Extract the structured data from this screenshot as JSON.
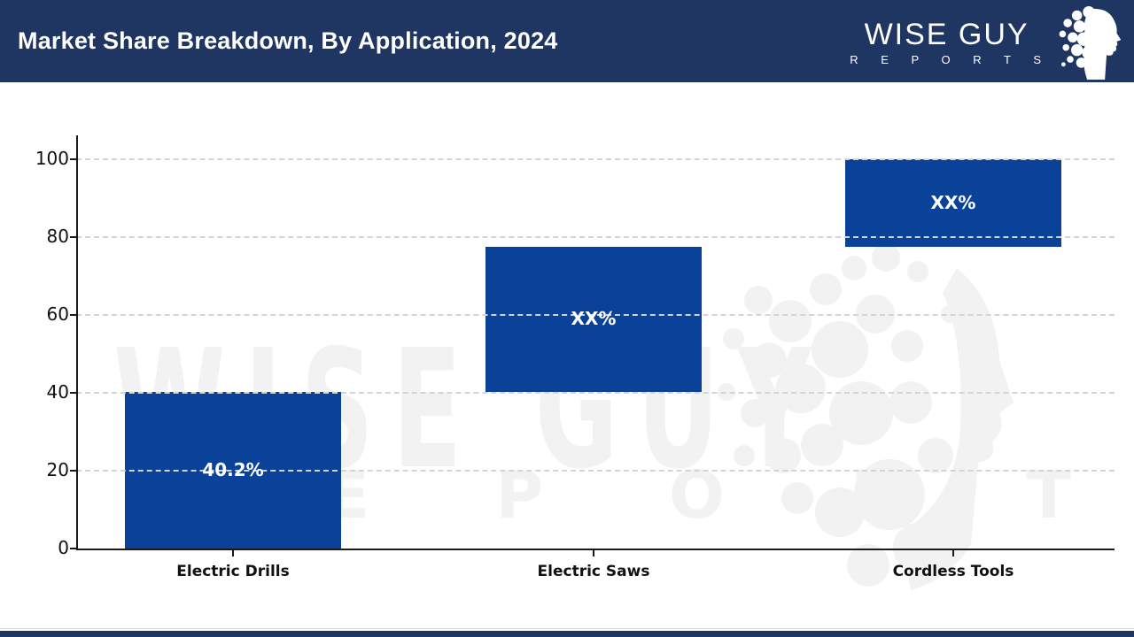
{
  "header": {
    "title": "Market Share Breakdown, By Application, 2024",
    "logo": {
      "line1": "WISE GUY",
      "line2": "R E P O R T S"
    }
  },
  "watermark": {
    "line1": "WISE GUY",
    "line2": "R E P O R T S"
  },
  "colors": {
    "header_bg": "#1f3562",
    "footer_bg": "#1f3562",
    "bar": "#0a429a",
    "gridline": "#d4d4d4",
    "watermark": "#f2f2f2",
    "axis": "#1a1a1a",
    "bar_label_text": "#ffffff"
  },
  "chart_data": {
    "type": "bar",
    "subtype": "floating-waterfall-segments",
    "title": "Market Share Breakdown, By Application, 2024",
    "categories": [
      "Electric Drills",
      "Electric Saws",
      "Cordless Tools"
    ],
    "bars": [
      {
        "category": "Electric Drills",
        "start": 0,
        "end": 40.2,
        "label": "40.2%"
      },
      {
        "category": "Electric Saws",
        "start": 40.2,
        "end": 77.4,
        "label": "XX%"
      },
      {
        "category": "Cordless Tools",
        "start": 77.4,
        "end": 100,
        "label": "XX%"
      }
    ],
    "xlabel": "",
    "ylabel": "",
    "ylim": [
      0,
      105
    ],
    "yticks": [
      0,
      20,
      40,
      60,
      80,
      100
    ],
    "grid": "horizontal dashed, drawn over bars",
    "legend": "none"
  }
}
